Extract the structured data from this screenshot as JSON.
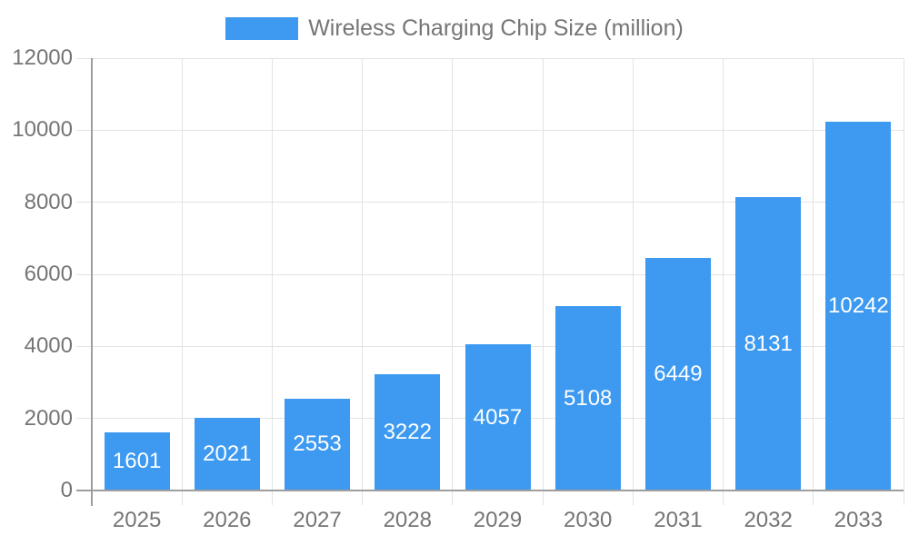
{
  "legend": {
    "label": "Wireless Charging Chip Size (million)"
  },
  "chart_data": {
    "type": "bar",
    "title": "Wireless Charging Chip Size (million)",
    "series_name": "Wireless Charging Chip Size (million)",
    "categories": [
      "2025",
      "2026",
      "2027",
      "2028",
      "2029",
      "2030",
      "2031",
      "2032",
      "2033"
    ],
    "values": [
      1601,
      2021,
      2553,
      3222,
      4057,
      5108,
      6449,
      8131,
      10242
    ],
    "xlabel": "",
    "ylabel": "",
    "ylim": [
      0,
      12000
    ],
    "yticks": [
      0,
      2000,
      4000,
      6000,
      8000,
      10000,
      12000
    ],
    "grid": true,
    "legend_position": "top",
    "bar_color": "#3d9af0",
    "bar_label_color": "#ffffff",
    "axis_text_color": "#757575",
    "grid_color": "#e3e3e3",
    "axis_line_color": "#9e9e9e"
  }
}
